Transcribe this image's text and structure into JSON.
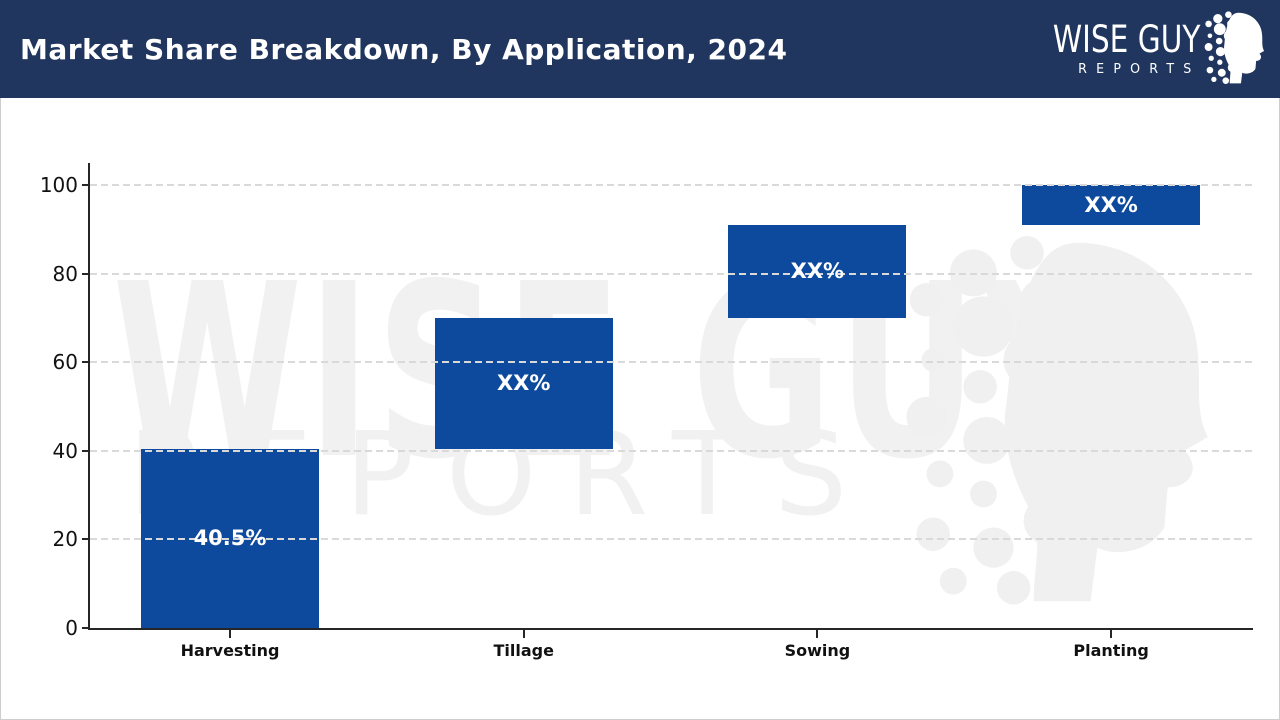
{
  "header": {
    "title": "Market Share Breakdown, By Application, 2024"
  },
  "logo": {
    "line1": "WISE GUY",
    "line2": "REPORTS",
    "face_icon": "dotted-head-profile"
  },
  "watermark": {
    "line1": "WISE GUY",
    "line2": "REPORTS"
  },
  "colors": {
    "header_bg": "#21365f",
    "bar": "#0d4a9e",
    "grid": "#d9d9d9",
    "axis": "#262626",
    "title_text": "#ffffff",
    "bar_label_text": "#ffffff",
    "watermark": "#f1f1f1"
  },
  "chart_data": {
    "type": "bar",
    "subtype": "waterfall",
    "title": "Market Share Breakdown, By Application, 2024",
    "categories": [
      "Harvesting",
      "Tillage",
      "Sowing",
      "Planting"
    ],
    "segments": [
      {
        "category": "Harvesting",
        "start": 0,
        "end": 40.5,
        "label": "40.5%",
        "masked": false
      },
      {
        "category": "Tillage",
        "start": 40.5,
        "end": 70,
        "label": "XX%",
        "masked": true
      },
      {
        "category": "Sowing",
        "start": 70,
        "end": 91,
        "label": "XX%",
        "masked": true
      },
      {
        "category": "Planting",
        "start": 91,
        "end": 100,
        "label": "XX%",
        "masked": true
      }
    ],
    "xlabel": "",
    "ylabel": "",
    "ylim": [
      0,
      100
    ],
    "yticks": [
      0,
      20,
      40,
      60,
      80,
      100
    ],
    "grid": "horizontal-dashed",
    "legend": "none",
    "bar_color": "#0d4a9e",
    "units": "%"
  }
}
